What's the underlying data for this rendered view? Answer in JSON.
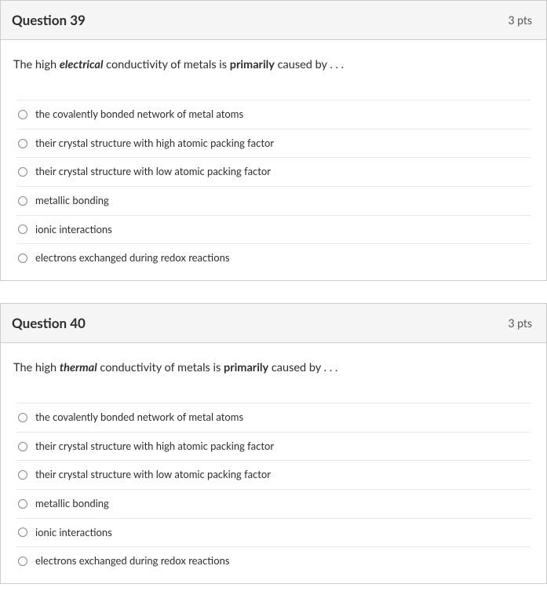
{
  "colors": {
    "card_border": "#cccccc",
    "header_bg": "#f5f5f5",
    "text": "#2d2d2d",
    "points_text": "#555555",
    "row_border": "#e8e8e8",
    "radio_border": "#888888",
    "body_bg": "#ffffff"
  },
  "questions": [
    {
      "title": "Question 39",
      "points": "3 pts",
      "stem_pre": "The high ",
      "stem_emph": "electrical",
      "stem_mid": " conductivity of metals is ",
      "stem_bold": "primarily",
      "stem_post": " caused by . . .",
      "options": [
        "the covalently bonded network of metal atoms",
        "their crystal structure with high atomic packing factor",
        "their crystal structure with low atomic packing factor",
        "metallic bonding",
        "ionic interactions",
        "electrons exchanged during redox reactions"
      ]
    },
    {
      "title": "Question 40",
      "points": "3 pts",
      "stem_pre": "The high ",
      "stem_emph": "thermal",
      "stem_mid": " conductivity of metals is ",
      "stem_bold": "primarily",
      "stem_post": " caused by . . .",
      "options": [
        "the covalently bonded network of metal atoms",
        "their crystal structure with high atomic packing factor",
        "their crystal structure with low atomic packing factor",
        "metallic bonding",
        "ionic interactions",
        "electrons exchanged during redox reactions"
      ]
    }
  ]
}
